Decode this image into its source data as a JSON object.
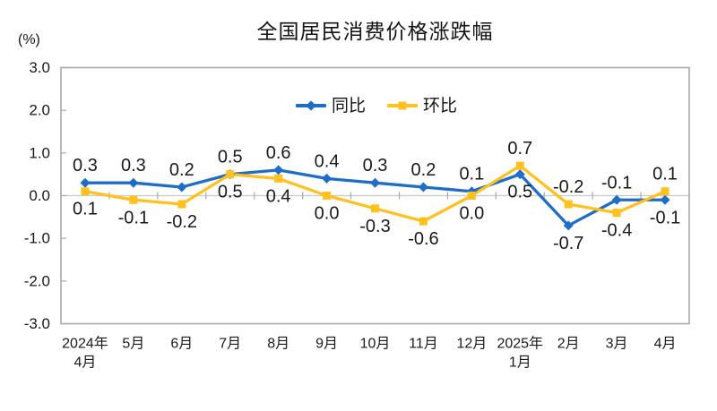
{
  "chart_data": {
    "type": "line",
    "title": "全国居民消费价格涨跌幅",
    "ylabel": "(%)",
    "xlabel": "",
    "ylim": [
      -3.0,
      3.0
    ],
    "ytick_labels": [
      "3.0",
      "2.0",
      "1.0",
      "0.0",
      "-1.0",
      "-2.0",
      "-3.0"
    ],
    "grid": "zero-baseline-only",
    "legend_position": "top-center-inside",
    "axis_color": "#a9a9a9",
    "zero_line_color": "#c8c8c8",
    "label_color": "#1a1a1a",
    "categories": [
      [
        "2024年",
        "4月"
      ],
      [
        "5月"
      ],
      [
        "6月"
      ],
      [
        "7月"
      ],
      [
        "8月"
      ],
      [
        "9月"
      ],
      [
        "10月"
      ],
      [
        "11月"
      ],
      [
        "12月"
      ],
      [
        "2025年",
        "1月"
      ],
      [
        "2月"
      ],
      [
        "3月"
      ],
      [
        "4月"
      ]
    ],
    "series": [
      {
        "id": "yoy",
        "name": "同比",
        "color": "#1e6ec8",
        "marker": "diamond",
        "values": [
          0.3,
          0.3,
          0.2,
          0.5,
          0.6,
          0.4,
          0.3,
          0.2,
          0.1,
          0.5,
          -0.7,
          -0.1,
          -0.1
        ],
        "label_side": [
          "above",
          "above",
          "above",
          "above",
          "above",
          "above",
          "above",
          "above",
          "above",
          "below",
          "below",
          "above",
          "below"
        ]
      },
      {
        "id": "mom",
        "name": "环比",
        "color": "#ffc120",
        "marker": "square",
        "values": [
          0.1,
          -0.1,
          -0.2,
          0.5,
          0.4,
          0.0,
          -0.3,
          -0.6,
          0.0,
          0.7,
          -0.2,
          -0.4,
          0.1
        ],
        "label_side": [
          "below",
          "below",
          "below",
          "below",
          "below",
          "below",
          "below",
          "below",
          "below",
          "above",
          "above",
          "below",
          "above"
        ]
      }
    ]
  }
}
